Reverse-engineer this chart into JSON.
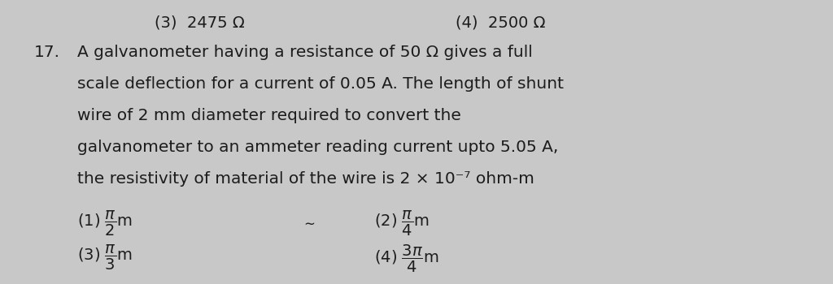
{
  "background_color": "#c8c8c8",
  "top_line_left": "(3)  2475 Ω",
  "top_line_right": "(4)  2500 Ω",
  "question_number": "17.",
  "question_lines": [
    "A galvanometer having a resistance of 50 Ω gives a full",
    "scale deflection for a current of 0.05 A. The length of shunt",
    "wire of 2 mm diameter required to convert the",
    "galvanometer to an ammeter reading current upto 5.05 A,",
    "the resistivity of material of the wire is 2 × 10⁻⁷ ohm-m"
  ],
  "text_color": "#1c1c1c",
  "font_size_top": 14,
  "font_size_body": 14.5,
  "font_size_options": 14
}
